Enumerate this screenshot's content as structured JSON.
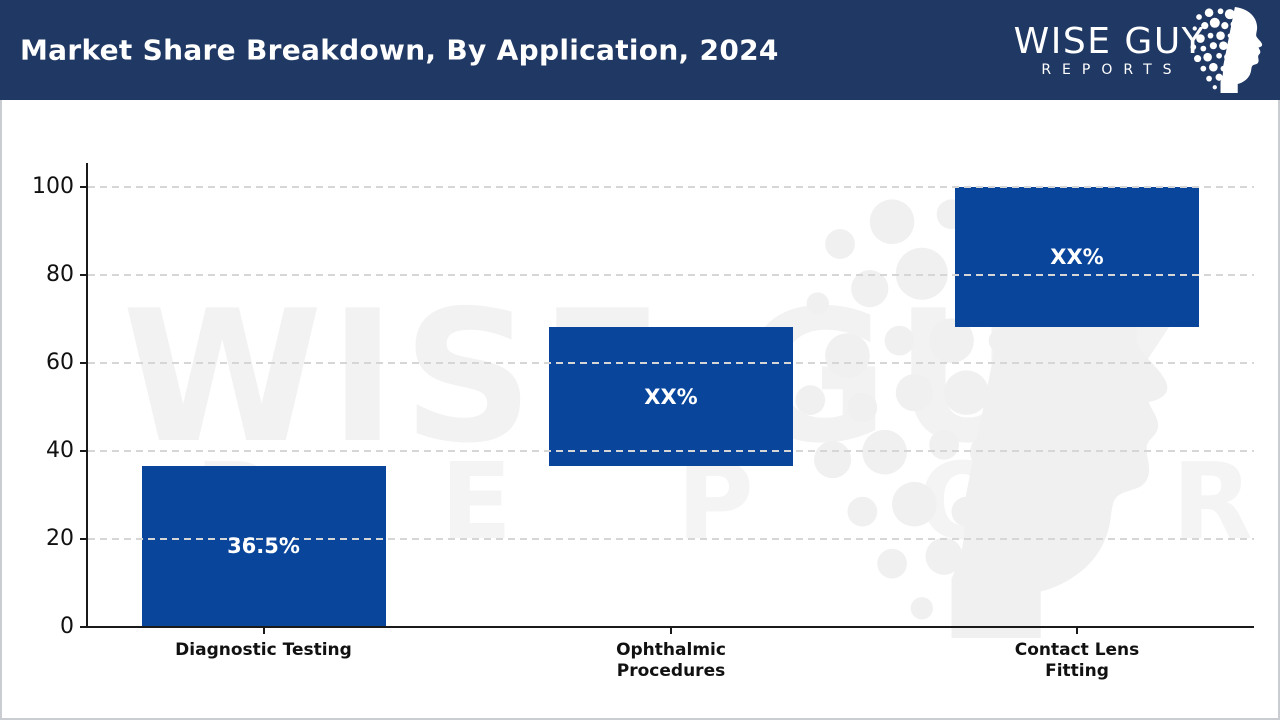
{
  "header": {
    "title": "Market Share Breakdown, By Application, 2024",
    "logo": {
      "name_line": "WISE GUY",
      "sub_line": "REPORTS"
    }
  },
  "watermark": {
    "name_line": "WISE GUY",
    "sub_line": "R E P O R T S"
  },
  "chart_data": {
    "type": "bar",
    "subtype": "stacked-range segments (market share waterfall, each bar starts where previous ends)",
    "title": "Market Share Breakdown, By Application, 2024",
    "categories": [
      "Diagnostic Testing",
      "Ophthalmic Procedures",
      "Contact Lens Fitting"
    ],
    "categories_display": [
      [
        "Diagnostic Testing"
      ],
      [
        "Ophthalmic",
        "Procedures"
      ],
      [
        "Contact Lens",
        "Fitting"
      ]
    ],
    "series": [
      {
        "name": "Diagnostic Testing",
        "start": 0,
        "end": 36.5,
        "label": "36.5%"
      },
      {
        "name": "Ophthalmic Procedures",
        "start": 36.5,
        "end": 68,
        "label": "XX%"
      },
      {
        "name": "Contact Lens Fitting",
        "start": 68,
        "end": 100,
        "label": "XX%"
      }
    ],
    "yticks": [
      0,
      20,
      40,
      60,
      80,
      100
    ],
    "ylim": [
      0,
      105
    ],
    "xlabel": "",
    "ylabel": "",
    "legend": "none",
    "grid": "horizontal dashed gridlines drawn over bars"
  },
  "colors": {
    "header_bg": "#1f3864",
    "bar": "#08459b",
    "grid": "#d6d6d6",
    "axis": "#1a1a1a",
    "watermark": "#f2f2f2",
    "text": "#111111",
    "bar_label": "#ffffff"
  }
}
